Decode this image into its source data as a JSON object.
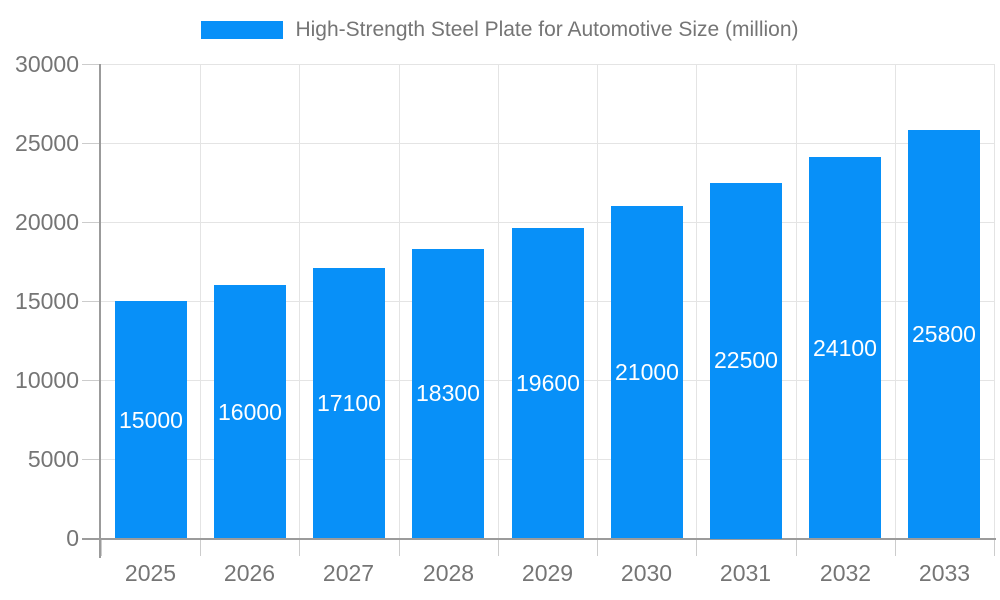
{
  "legend": {
    "label": "High-Strength Steel Plate for Automotive Size (million)"
  },
  "colors": {
    "bar": "#0890F8",
    "grid": "#E4E4E4",
    "tick": "#CCCCCC",
    "axis": "#9B9B9B",
    "axis_label": "#757575",
    "value_label": "#FFFFFF",
    "background": "#FFFFFF"
  },
  "chart_data": {
    "type": "bar",
    "title": "High-Strength Steel Plate for Automotive Size (million)",
    "categories": [
      "2025",
      "2026",
      "2027",
      "2028",
      "2029",
      "2030",
      "2031",
      "2032",
      "2033"
    ],
    "values": [
      15000,
      16000,
      17100,
      18300,
      19600,
      21000,
      22500,
      24100,
      25800
    ],
    "xlabel": "",
    "ylabel": "",
    "ylim": [
      0,
      30000
    ],
    "yticks": [
      0,
      5000,
      10000,
      15000,
      20000,
      25000,
      30000
    ],
    "grid": true,
    "legend_position": "top-center",
    "value_label_position": "inside-center"
  }
}
